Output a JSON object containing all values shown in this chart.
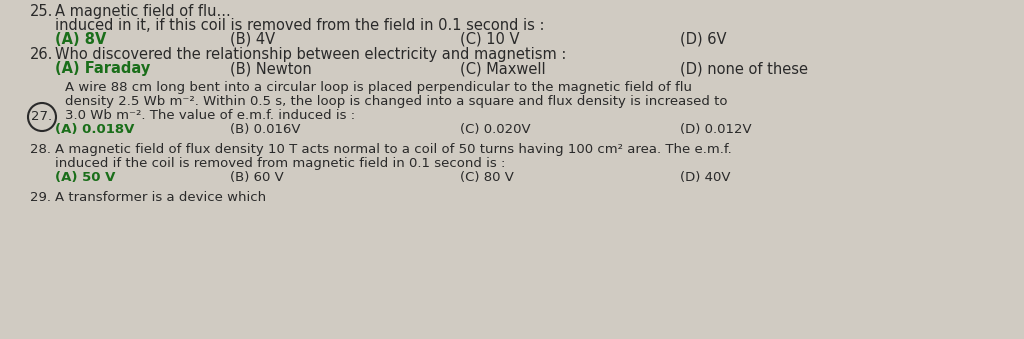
{
  "bg_color": "#d0cbc2",
  "text_color": "#2a2a2a",
  "green_color": "#1a6e1a",
  "q25_num": "25.",
  "q25_line1": "A magnetic field of flu...",
  "q25_line2": "induced in it, if this coil is removed from the field in 0.1 second is :",
  "q25_A": "(A) 8V",
  "q25_B": "(B) 4V",
  "q25_C": "(C) 10 V",
  "q25_D": "(D) 6V",
  "q26_num": "26.",
  "q26_line1": "Who discovered the relationship between electricity and magnetism :",
  "q26_A": "(A) Faraday",
  "q26_B": "(B) Newton",
  "q26_C": "(C) Maxwell",
  "q26_D": "(D) none of these",
  "q27_num": "27.",
  "q27_line1": "A wire 88 cm long bent into a circular loop is placed perpendicular to the magnetic field of flu",
  "q27_line2": "density 2.5 Wb m⁻². Within 0.5 s, the loop is changed into a square and flux density is increased to",
  "q27_line3": "3.0 Wb m⁻². The value of e.m.f. induced is :",
  "q27_A": "(A) 0.018V",
  "q27_B": "(B) 0.016V",
  "q27_C": "(C) 0.020V",
  "q27_D": "(D) 0.012V",
  "q28_num": "28.",
  "q28_line1": "A magnetic field of flux density 10 T acts normal to a coil of 50 turns having 100 cm² area. The e.m.f.",
  "q28_line2": "induced if the coil is removed from magnetic field in 0.1 second is :",
  "q28_A": "(A) 50 V",
  "q28_B": "(B) 60 V",
  "q28_C": "(C) 80 V",
  "q28_D": "(D) 40V",
  "q29_num": "29.",
  "q29_text": "A transformer is a device which",
  "fs": 10.5,
  "fss": 9.5,
  "col_A": 55,
  "col_B": 230,
  "col_C": 460,
  "col_D": 680
}
